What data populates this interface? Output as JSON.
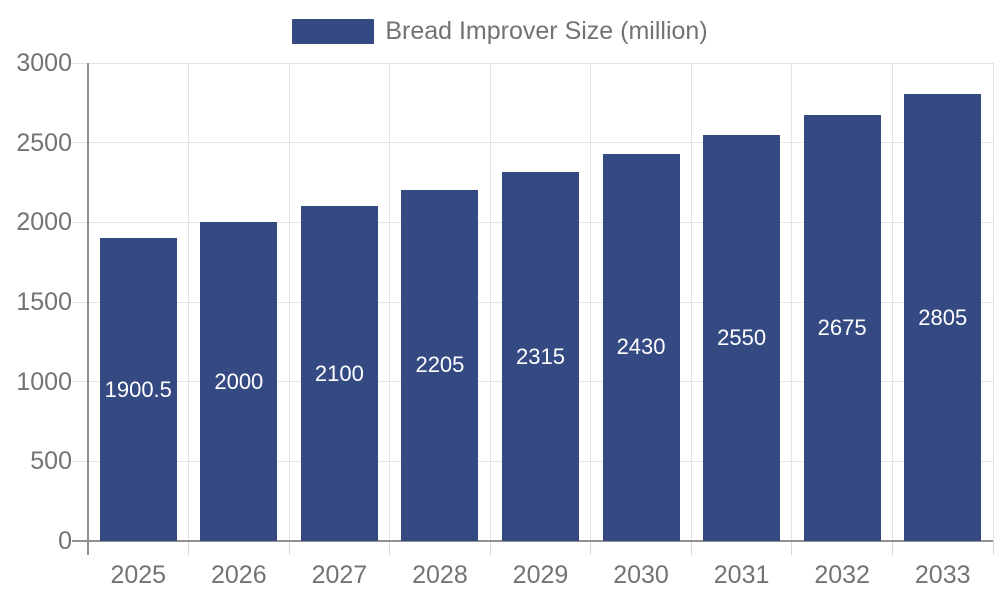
{
  "legend": {
    "label": "Bread Improver Size (million)"
  },
  "chart_data": {
    "type": "bar",
    "title": "Bread Improver Size (million)",
    "categories": [
      "2025",
      "2026",
      "2027",
      "2028",
      "2029",
      "2030",
      "2031",
      "2032",
      "2033"
    ],
    "values": [
      1900.5,
      2000,
      2100,
      2205,
      2315,
      2430,
      2550,
      2675,
      2805
    ],
    "bar_labels": [
      "1900.5",
      "2000",
      "2100",
      "2205",
      "2315",
      "2430",
      "2550",
      "2675",
      "2805"
    ],
    "xlabel": "",
    "ylabel": "",
    "ylim": [
      0,
      3000
    ],
    "yticks": [
      0,
      500,
      1000,
      1500,
      2000,
      2500,
      3000
    ],
    "grid": true,
    "legend_entries": [
      "Bread Improver Size (million)"
    ],
    "legend_position": "top-center",
    "colors": {
      "bar": "#354A83",
      "axis_text": "#737373",
      "grid_line": "#E4E4E4",
      "tick_line": "#D6D6D6",
      "axis_line": "#909090",
      "value_label": "#FFFFFF",
      "background": "#FFFFFF"
    }
  }
}
